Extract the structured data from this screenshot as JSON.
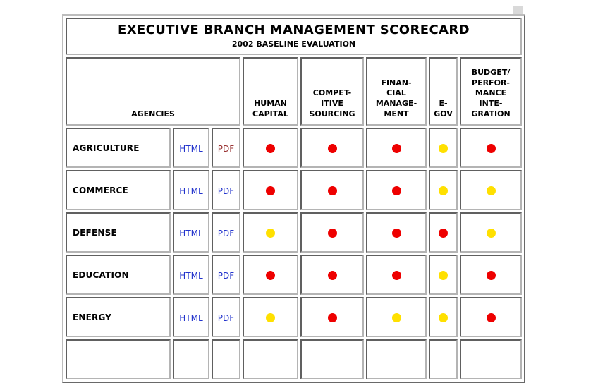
{
  "scorecard": {
    "title": "EXECUTIVE BRANCH MANAGEMENT SCORECARD",
    "subtitle": "2002 BASELINE EVALUATION",
    "agencies_header": "AGENCIES",
    "category_headers": [
      [
        "HUMAN",
        "CAPITAL"
      ],
      [
        "COMPET-",
        "ITIVE",
        "SOURCING"
      ],
      [
        "FINAN-",
        "CIAL",
        "MANAGE-",
        "MENT"
      ],
      [
        "E-",
        "GOV"
      ],
      [
        "BUDGET/",
        "PERFOR-",
        "MANCE",
        "INTE-",
        "GRATION"
      ]
    ],
    "status_colors": {
      "red": "#ee0000",
      "yellow": "#ffe000"
    },
    "link_colors": {
      "unvisited": "#2233cc",
      "visited": "#993333"
    },
    "rows": [
      {
        "agency": "AGRICULTURE",
        "html_label": "HTML",
        "pdf_label": "PDF",
        "html_state": "unvisited",
        "pdf_state": "visited",
        "statuses": [
          "red",
          "red",
          "red",
          "yellow",
          "red"
        ]
      },
      {
        "agency": "COMMERCE",
        "html_label": "HTML",
        "pdf_label": "PDF",
        "html_state": "unvisited",
        "pdf_state": "unvisited",
        "statuses": [
          "red",
          "red",
          "red",
          "yellow",
          "yellow"
        ]
      },
      {
        "agency": "DEFENSE",
        "html_label": "HTML",
        "pdf_label": "PDF",
        "html_state": "unvisited",
        "pdf_state": "unvisited",
        "statuses": [
          "yellow",
          "red",
          "red",
          "red",
          "yellow"
        ]
      },
      {
        "agency": "EDUCATION",
        "html_label": "HTML",
        "pdf_label": "PDF",
        "html_state": "unvisited",
        "pdf_state": "unvisited",
        "statuses": [
          "red",
          "red",
          "red",
          "yellow",
          "red"
        ]
      },
      {
        "agency": "ENERGY",
        "html_label": "HTML",
        "pdf_label": "PDF",
        "html_state": "unvisited",
        "pdf_state": "unvisited",
        "statuses": [
          "yellow",
          "red",
          "yellow",
          "yellow",
          "red"
        ]
      }
    ]
  }
}
